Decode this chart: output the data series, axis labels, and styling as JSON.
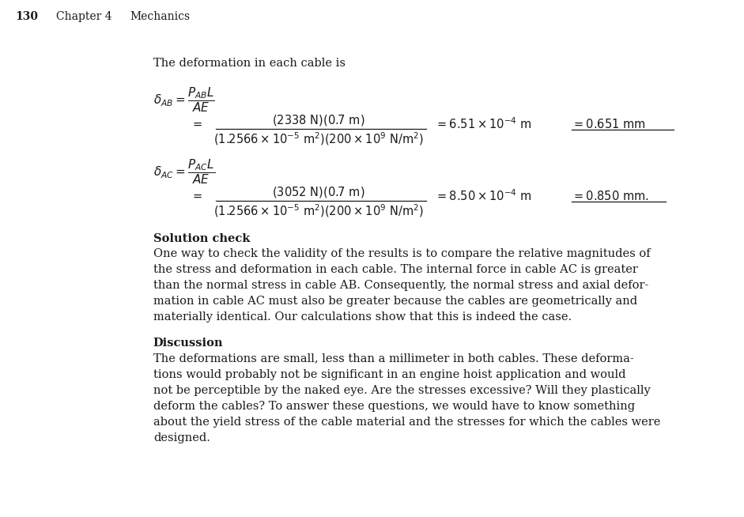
{
  "background_color": "#ffffff",
  "page_background": "#ffffff",
  "header_text": "130",
  "header_chapter": "Chapter 4",
  "header_section": "Mechanics",
  "main_bg": "#d9d9d9",
  "right_bar_color": "#7a7a7a",
  "font_color": "#1a1a1a",
  "body_font_size": 10.5,
  "title_intro": "The deformation in each cable is",
  "section1_header": "Solution check",
  "section1_body": "One way to check the validity of the results is to compare the relative magnitudes of\nthe stress and deformation in each cable. The internal force in cable AC is greater\nthan the normal stress in cable AB. Consequently, the normal stress and axial defor-\nmation in cable AC must also be greater because the cables are geometrically and\nmaterially identical. Our calculations show that this is indeed the case.",
  "section2_header": "Discussion",
  "section2_body": "The deformations are small, less than a millimeter in both cables. These deforma-\ntions would probably not be significant in an engine hoist application and would\nnot be perceptible by the naked eye. Are the stresses excessive? Will they plastically\ndeform the cables? To answer these questions, we would have to know something\nabout the yield stress of the cable material and the stresses for which the cables were\ndesigned."
}
